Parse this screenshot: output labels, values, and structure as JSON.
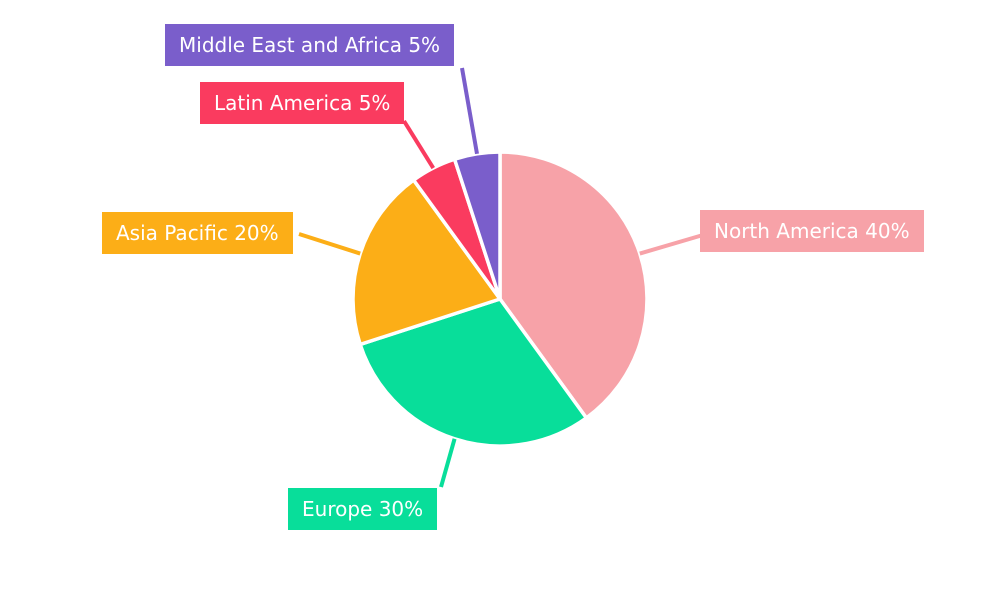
{
  "chart_data": {
    "type": "pie",
    "title": "",
    "unit": "%",
    "start_angle_deg_from_top": 0,
    "direction": "clockwise",
    "legend_position": "none",
    "background": "#ffffff",
    "slice_border_color": "#ffffff",
    "series": [
      {
        "label": "North America",
        "value": 40,
        "display": "North America 40%",
        "color": "#f7a2a8"
      },
      {
        "label": "Europe",
        "value": 30,
        "display": "Europe 30%",
        "color": "#08de9a"
      },
      {
        "label": "Asia Pacific",
        "value": 20,
        "display": "Asia Pacific 20%",
        "color": "#fcae17"
      },
      {
        "label": "Latin America",
        "value": 5,
        "display": "Latin America 5%",
        "color": "#fa3b5f"
      },
      {
        "label": "Middle East and Africa",
        "value": 5,
        "display": "Middle East and Africa 5%",
        "color": "#7a5ecb"
      }
    ]
  }
}
